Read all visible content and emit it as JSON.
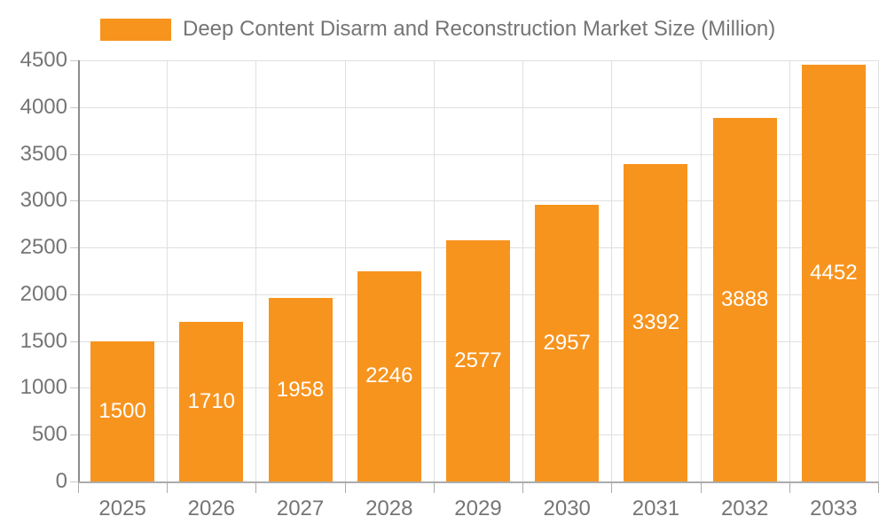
{
  "chart_data": {
    "type": "bar",
    "title": "Deep Content Disarm and Reconstruction Market Size (Million)",
    "legend": [
      {
        "label": "Deep Content Disarm and Reconstruction Market Size (Million)",
        "color": "#F7941E"
      }
    ],
    "legend_position": "top-left",
    "categories": [
      "2025",
      "2026",
      "2027",
      "2028",
      "2029",
      "2030",
      "2031",
      "2032",
      "2033"
    ],
    "values": [
      1500,
      1710,
      1958,
      2246,
      2577,
      2957,
      3392,
      3888,
      4452
    ],
    "bar_labels": [
      1500,
      1710,
      1958,
      2246,
      2577,
      2957,
      3392,
      3888,
      4452
    ],
    "xlabel": "",
    "ylabel": "",
    "ylim": [
      0,
      4500
    ],
    "yticks": [
      0,
      500,
      1000,
      1500,
      2000,
      2500,
      3000,
      3500,
      4000,
      4500
    ],
    "grid": true,
    "colors": {
      "bar": "#F7941E",
      "bar_label": "#FFFFFF",
      "text": "#757575",
      "grid": "#E0E0E0",
      "axis_y": "#8C8C8C",
      "axis_x": "#ABABAB",
      "tick": "#C9C9C9",
      "background": "#FFFFFF"
    }
  }
}
